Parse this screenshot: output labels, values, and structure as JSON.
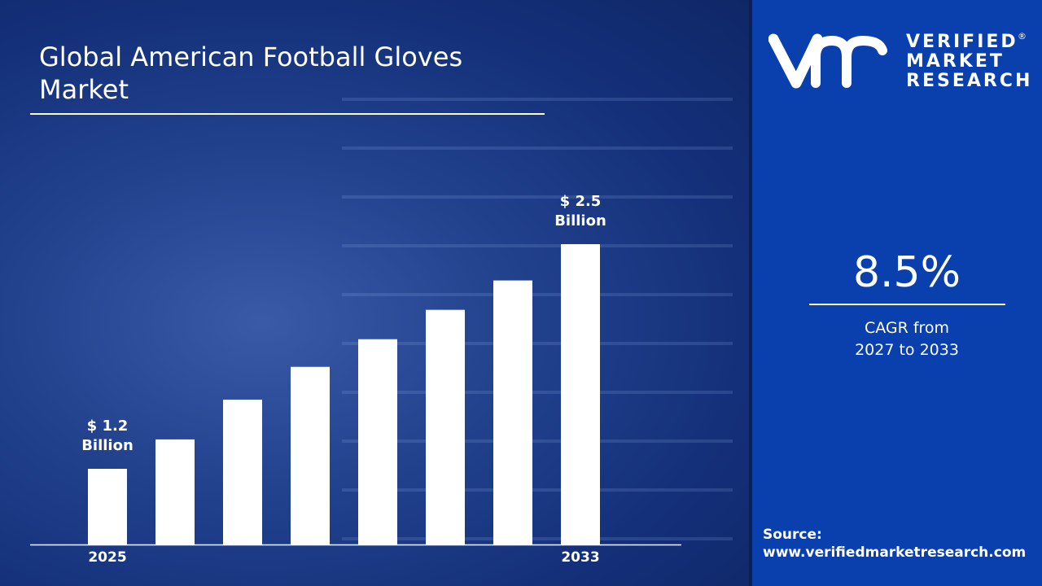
{
  "title": "Global American Football Gloves Market",
  "brand": {
    "line1": "VERIFIED",
    "line2": "MARKET",
    "line3": "RESEARCH",
    "registered": "®"
  },
  "cagr": {
    "value": "8.5%",
    "label_line1": "CAGR from",
    "label_line2": "2027 to 2033"
  },
  "source": {
    "label": "Source:",
    "url": "www.verifiedmarketresearch.com"
  },
  "colors": {
    "panel": "#0a3fae",
    "bars": "#ffffff",
    "background": "#1f3d8a"
  },
  "chart_data": {
    "type": "bar",
    "title": "Global American Football Gloves Market",
    "categories": [
      "2025",
      "",
      "",
      "",
      "",
      "",
      "",
      "2033"
    ],
    "values": [
      1.2,
      1.37,
      1.6,
      1.79,
      1.95,
      2.12,
      2.29,
      2.5
    ],
    "unit": "USD Billion",
    "data_labels": [
      {
        "index": 0,
        "line1": "$ 1.2",
        "line2": "Billion"
      },
      {
        "index": 7,
        "line1": "$ 2.5",
        "line2": "Billion"
      }
    ],
    "grid": false
  }
}
